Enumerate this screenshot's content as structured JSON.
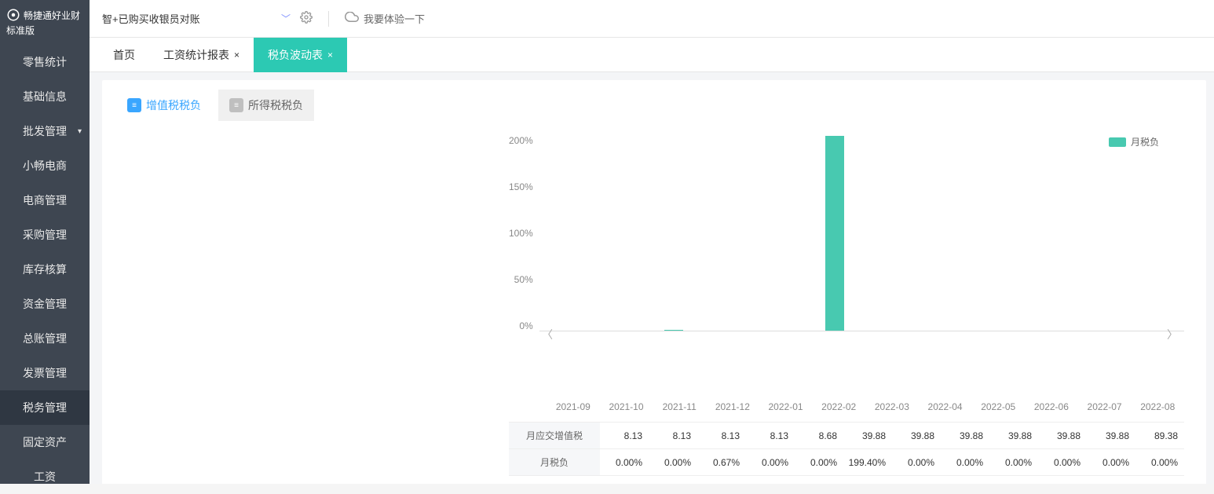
{
  "brand": {
    "name": "畅捷通好业财",
    "edition": "标准版"
  },
  "sidebar": {
    "items": [
      {
        "label": "零售统计",
        "active": false,
        "expandable": false
      },
      {
        "label": "基础信息",
        "active": false,
        "expandable": false
      },
      {
        "label": "批发管理",
        "active": false,
        "expandable": true
      },
      {
        "label": "小畅电商",
        "active": false,
        "expandable": false
      },
      {
        "label": "电商管理",
        "active": false,
        "expandable": false
      },
      {
        "label": "采购管理",
        "active": false,
        "expandable": false
      },
      {
        "label": "库存核算",
        "active": false,
        "expandable": false
      },
      {
        "label": "资金管理",
        "active": false,
        "expandable": false
      },
      {
        "label": "总账管理",
        "active": false,
        "expandable": false
      },
      {
        "label": "发票管理",
        "active": false,
        "expandable": false
      },
      {
        "label": "税务管理",
        "active": true,
        "expandable": false
      },
      {
        "label": "固定资产",
        "active": false,
        "expandable": false
      },
      {
        "label": "工资",
        "active": false,
        "expandable": false
      }
    ]
  },
  "topbar": {
    "selector_text": "智+已购买收银员对账",
    "experience_label": "我要体验一下"
  },
  "tabs": [
    {
      "label": "首页",
      "closable": false,
      "active": false
    },
    {
      "label": "工资统计报表",
      "closable": true,
      "active": false
    },
    {
      "label": "税负波动表",
      "closable": true,
      "active": true
    }
  ],
  "subtabs": [
    {
      "label": "增值税税负",
      "active": true
    },
    {
      "label": "所得税税负",
      "active": false
    }
  ],
  "chart": {
    "type": "bar",
    "legend_label": "月税负",
    "legend_color": "#48c9b0",
    "ylim": [
      0,
      200
    ],
    "ytick_step": 50,
    "yticks": [
      "200%",
      "150%",
      "100%",
      "50%",
      "0%"
    ],
    "categories": [
      "2021-09",
      "2021-10",
      "2021-11",
      "2021-12",
      "2022-01",
      "2022-02",
      "2022-03",
      "2022-04",
      "2022-05",
      "2022-06",
      "2022-07",
      "2022-08"
    ],
    "values_pct": [
      0.0,
      0.0,
      0.67,
      0.0,
      0.0,
      199.4,
      0.0,
      0.0,
      0.0,
      0.0,
      0.0,
      0.0
    ],
    "bar_color": "#48c9b0",
    "grid_color": "#e0e0e0",
    "background_color": "#ffffff",
    "label_fontsize": 12
  },
  "table": {
    "row_headers": [
      "月应交增值税",
      "月税负"
    ],
    "rows": [
      [
        "8.13",
        "8.13",
        "8.13",
        "8.13",
        "8.68",
        "39.88",
        "39.88",
        "39.88",
        "39.88",
        "39.88",
        "39.88",
        "89.38"
      ],
      [
        "0.00%",
        "0.00%",
        "0.67%",
        "0.00%",
        "0.00%",
        "199.40%",
        "0.00%",
        "0.00%",
        "0.00%",
        "0.00%",
        "0.00%",
        "0.00%"
      ]
    ]
  },
  "colors": {
    "sidebar_bg": "#3e4651",
    "sidebar_active_bg": "#2f3742",
    "tab_active_bg": "#2cc9b3",
    "subtab_active_color": "#3aa6ff"
  }
}
